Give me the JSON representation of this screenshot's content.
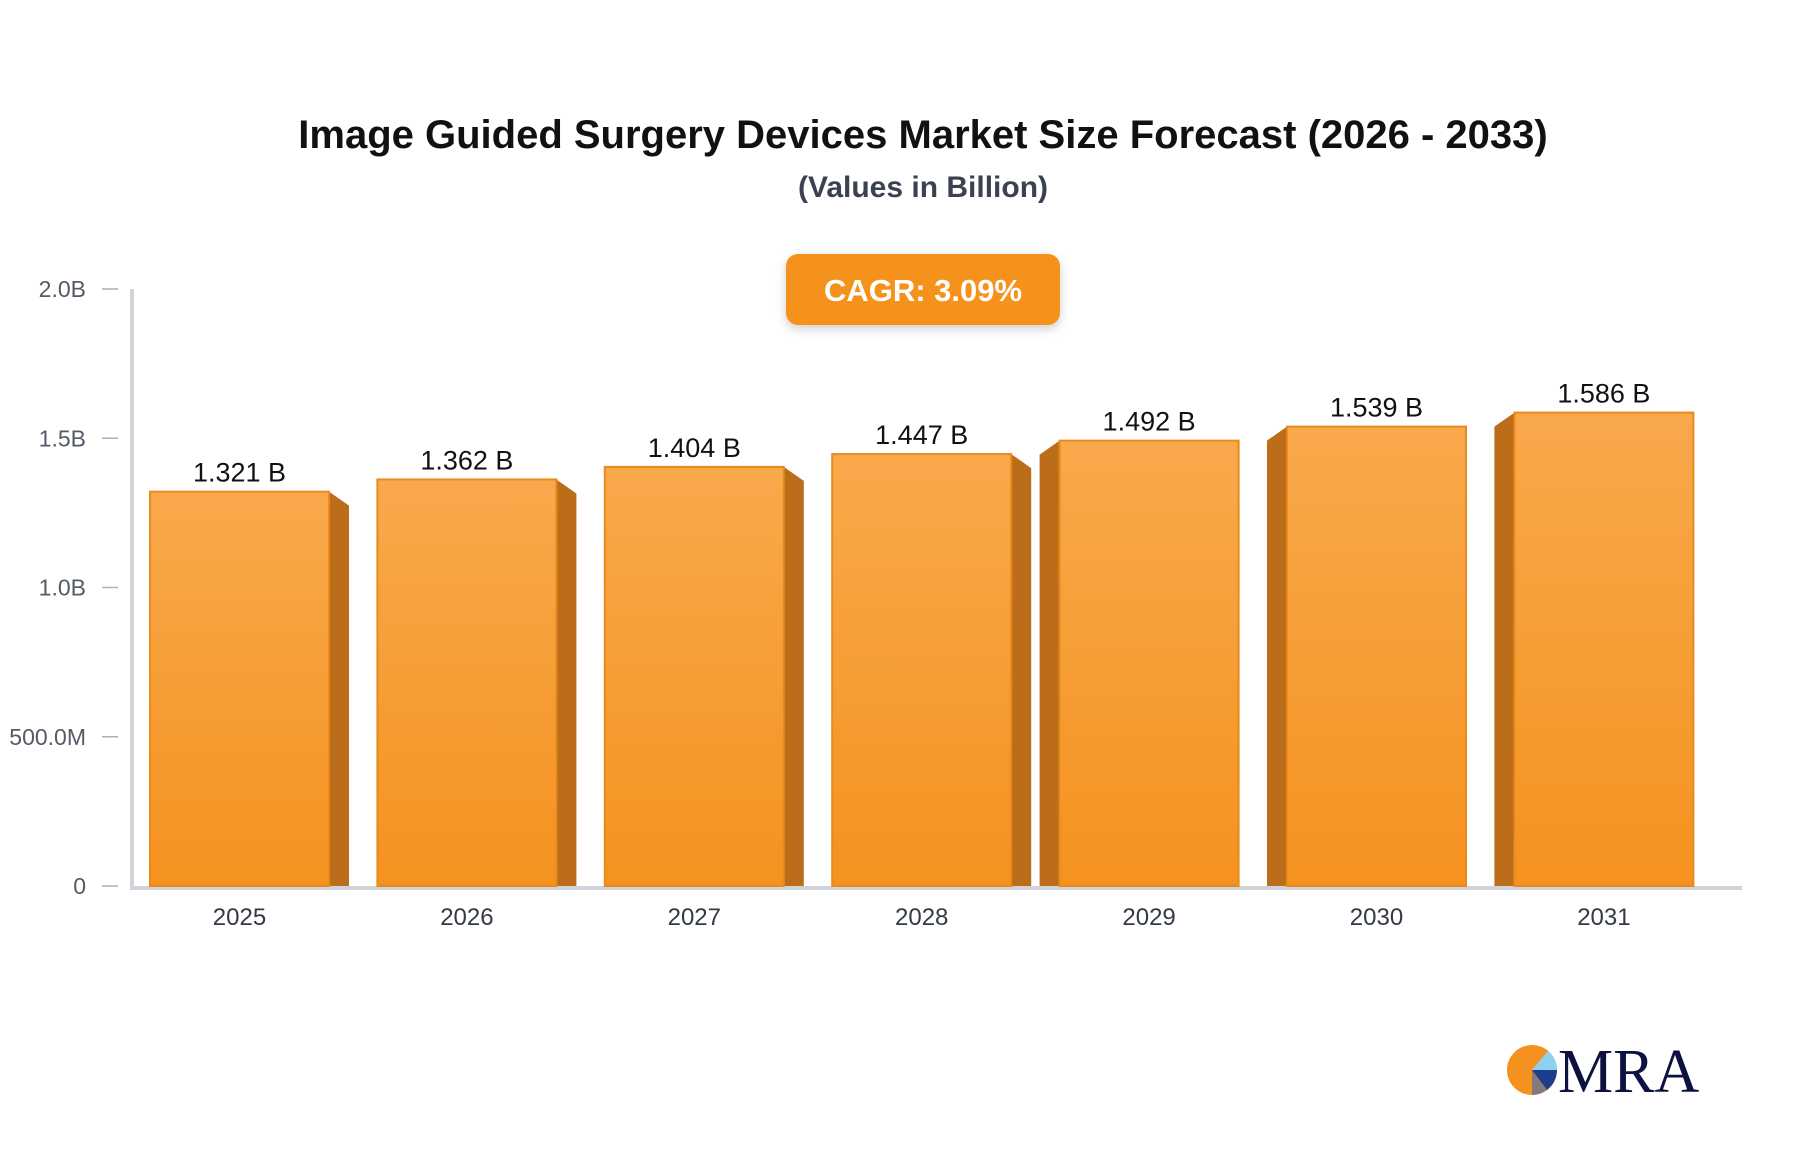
{
  "chart_data": {
    "type": "bar",
    "title": "Image Guided Surgery Devices Market Size Forecast (2026 - 2033)",
    "subtitle": "(Values in Billion)",
    "badge": "CAGR: 3.09%",
    "categories": [
      "2025",
      "2026",
      "2027",
      "2028",
      "2029",
      "2030",
      "2031"
    ],
    "values": [
      1.321,
      1.362,
      1.404,
      1.447,
      1.492,
      1.539,
      1.586
    ],
    "data_labels": [
      "1.321 B",
      "1.362 B",
      "1.404 B",
      "1.447 B",
      "1.492 B",
      "1.539 B",
      "1.586 B"
    ],
    "yticks": [
      0,
      0.5,
      1.0,
      1.5,
      2.0
    ],
    "ytick_labels": [
      "0",
      "500.0M",
      "1.0B",
      "1.5B",
      "2.0B"
    ],
    "ylim": [
      0,
      2.0
    ],
    "xlabel": "",
    "ylabel": "",
    "grid": false,
    "colors": {
      "bar_top": "#f8a94c",
      "bar_bottom": "#f5921f",
      "bar_side": "#bb6d1a",
      "badge": "#f5921f",
      "axis": "#d0d3da"
    }
  },
  "logo": {
    "text": "MRA"
  }
}
